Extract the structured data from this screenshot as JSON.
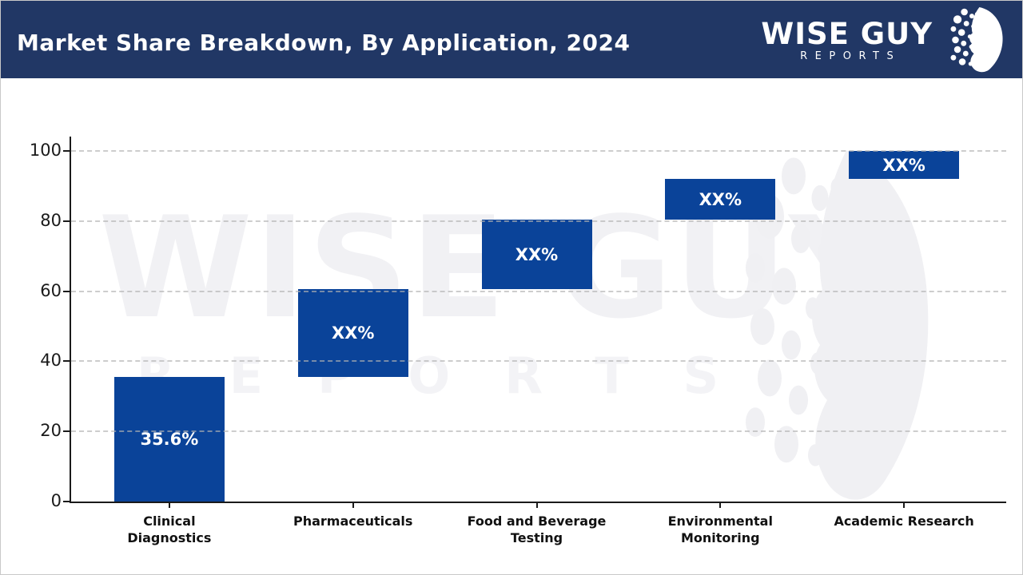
{
  "header": {
    "title": "Market Share Breakdown, By Application, 2024",
    "logo": {
      "line1": "WISE GUY",
      "line2": "REPORTS"
    }
  },
  "watermark": {
    "line1": "WISE GUY",
    "line2": "REPORTS"
  },
  "colors": {
    "header_bg": "#213765",
    "bar": "#0a4399",
    "bar_label": "#ffffff",
    "grid": "#d9d9d9",
    "axis": "#1a1a1a",
    "watermark": "#f1f1f4"
  },
  "chart_data": {
    "type": "bar",
    "subtype": "waterfall",
    "title": "Market Share Breakdown, By Application, 2024",
    "xlabel": "",
    "ylabel": "",
    "categories": [
      "Clinical Diagnostics",
      "Pharmaceuticals",
      "Food and Beverage Testing",
      "Environmental Monitoring",
      "Academic Research"
    ],
    "category_lines": [
      [
        "Clinical",
        "Diagnostics"
      ],
      [
        "Pharmaceuticals"
      ],
      [
        "Food and Beverage",
        "Testing"
      ],
      [
        "Environmental",
        "Monitoring"
      ],
      [
        "Academic Research"
      ]
    ],
    "segments": [
      {
        "category": "Clinical Diagnostics",
        "start": 0,
        "end": 35.6,
        "label": "35.6%"
      },
      {
        "category": "Pharmaceuticals",
        "start": 35.6,
        "end": 60.5,
        "label": "XX%"
      },
      {
        "category": "Food and Beverage Testing",
        "start": 60.5,
        "end": 80.4,
        "label": "XX%"
      },
      {
        "category": "Environmental Monitoring",
        "start": 80.4,
        "end": 92.0,
        "label": "XX%"
      },
      {
        "category": "Academic Research",
        "start": 92.0,
        "end": 100.0,
        "label": "XX%"
      }
    ],
    "yticks": [
      0,
      20,
      40,
      60,
      80,
      100
    ],
    "ylim": [
      0,
      104
    ],
    "grid": "horizontal-dashed",
    "legend": "none"
  }
}
